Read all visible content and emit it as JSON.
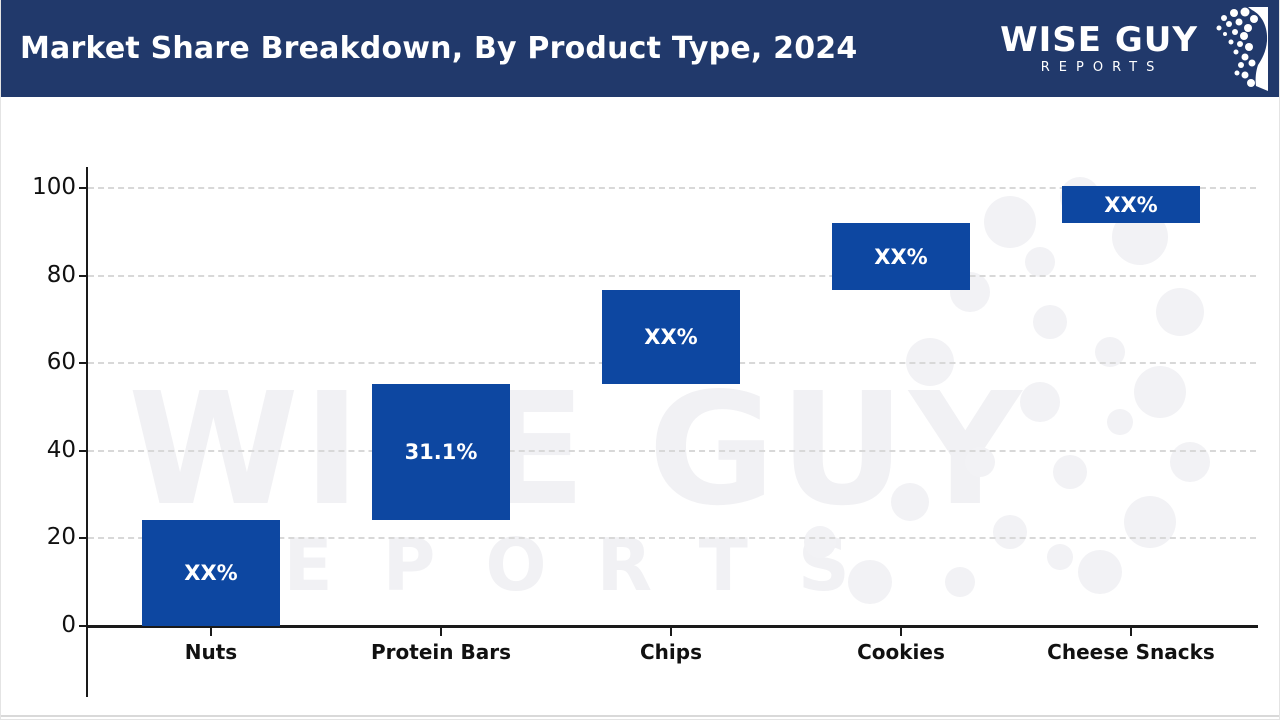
{
  "header": {
    "title": "Market Share Breakdown, By Product Type, 2024",
    "bg_color": "#21396b",
    "logo": {
      "line1": "WISE GUY",
      "line2": "REPORTS"
    }
  },
  "watermark": {
    "line1": "WISE GUY",
    "line2": "REPORTS"
  },
  "chart_data": {
    "type": "bar",
    "subtype": "waterfall",
    "title": "Market Share Breakdown, By Product Type, 2024",
    "categories": [
      "Nuts",
      "Protein Bars",
      "Chips",
      "Cookies",
      "Cheese Snacks"
    ],
    "segments": [
      {
        "category": "Nuts",
        "start": 0,
        "end": 24.2,
        "label": "XX%"
      },
      {
        "category": "Protein Bars",
        "start": 24.2,
        "end": 55.3,
        "label": "31.1%"
      },
      {
        "category": "Chips",
        "start": 55.3,
        "end": 76.6,
        "label": "XX%"
      },
      {
        "category": "Cookies",
        "start": 76.6,
        "end": 91.9,
        "label": "XX%"
      },
      {
        "category": "Cheese Snacks",
        "start": 91.9,
        "end": 100.4,
        "label": "XX%"
      }
    ],
    "yticks": [
      0,
      20,
      40,
      60,
      80,
      100
    ],
    "ylim": [
      0,
      105
    ],
    "xlabel": "",
    "ylabel": "",
    "bar_color": "#0d47a1",
    "grid": true,
    "gridline_style": "dashed",
    "legend": false
  }
}
